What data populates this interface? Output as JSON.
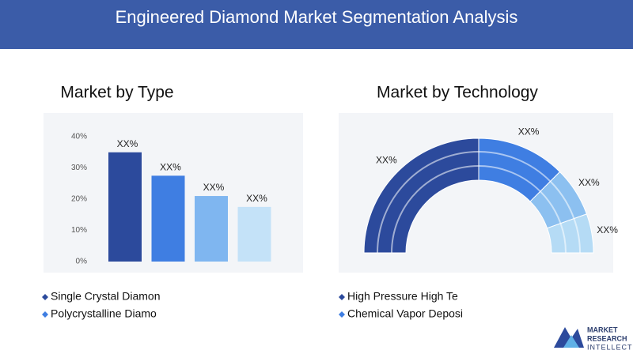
{
  "header": {
    "title": "Engineered Diamond Market Segmentation Analysis"
  },
  "chart_data": [
    {
      "type": "bar",
      "title": "Market by Type",
      "categories": [
        null,
        null,
        null,
        null
      ],
      "values": [
        35,
        27.5,
        21,
        17.5
      ],
      "value_labels": [
        "XX%",
        "XX%",
        "XX%",
        "XX%"
      ],
      "colors": [
        "#2c4a9c",
        "#3f7ee2",
        "#7fb6f0",
        "#c4e2f8"
      ],
      "ylim": [
        0,
        40
      ],
      "yticks": [
        {
          "value": 0,
          "label": "0%"
        },
        {
          "value": 10,
          "label": "10%"
        },
        {
          "value": 20,
          "label": "20%"
        },
        {
          "value": 30,
          "label": "30%"
        },
        {
          "value": 40,
          "label": "40%"
        }
      ],
      "grid": false,
      "legend": [
        {
          "label": "Single Crystal Diamon",
          "color": "#2c4a9c"
        },
        {
          "label": "Polycrystalline Diamo",
          "color": "#3f7ee2"
        }
      ]
    },
    {
      "type": "donut",
      "title": "Market by Technology",
      "values": [
        50,
        25,
        14,
        11
      ],
      "value_labels": [
        "XX%",
        "XX%",
        "XX%",
        "XX%"
      ],
      "colors": [
        "#2c4a9c",
        "#3f7ee2",
        "#8cc0f0",
        "#b5dbf5"
      ],
      "legend": [
        {
          "label": "High Pressure High Te",
          "color": "#2c4a9c"
        },
        {
          "label": "Chemical Vapor Deposi",
          "color": "#3f7ee2"
        }
      ]
    }
  ],
  "logo": {
    "lines": [
      "MARKET",
      "RESEARCH",
      "INTELLECT"
    ]
  }
}
